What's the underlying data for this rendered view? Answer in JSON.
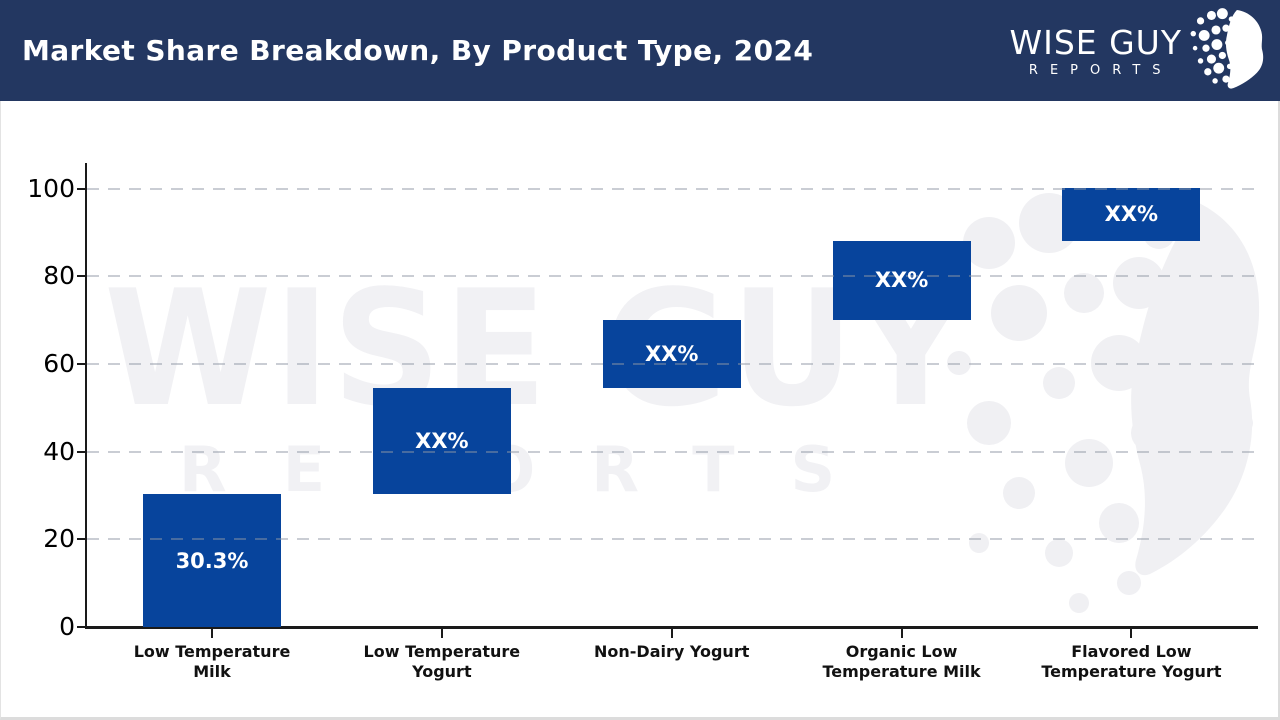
{
  "header": {
    "title": "Market Share Breakdown, By Product Type, 2024",
    "bg_color": "#233761",
    "logo": {
      "wordmark": "WISE GUY",
      "subtext": "REPORTS"
    }
  },
  "watermark": {
    "line1": "WISE GUY",
    "line2": "REPORTS"
  },
  "chart_data": {
    "type": "bar",
    "subtype": "floating-waterfall",
    "title": "Market Share Breakdown, By Product Type, 2024",
    "xlabel": "",
    "ylabel": "",
    "ylim": [
      0,
      105
    ],
    "yticks": [
      0,
      20,
      40,
      60,
      80,
      100
    ],
    "grid": "horizontal-dashed",
    "legend": "none",
    "bar_color": "#07449c",
    "label_color": "#ffffff",
    "categories": [
      "Low Temperature Milk",
      "Low Temperature Yogurt",
      "Non-Dairy Yogurt",
      "Organic Low Temperature Milk",
      "Flavored Low Temperature Yogurt"
    ],
    "bars": [
      {
        "category_lines": [
          "Low Temperature",
          "Milk"
        ],
        "start": 0,
        "end": 30.3,
        "label": "30.3%"
      },
      {
        "category_lines": [
          "Low Temperature",
          "Yogurt"
        ],
        "start": 30.3,
        "end": 54.6,
        "label": "XX%"
      },
      {
        "category_lines": [
          "Non-Dairy Yogurt"
        ],
        "start": 54.6,
        "end": 70.0,
        "label": "XX%"
      },
      {
        "category_lines": [
          "Organic Low",
          "Temperature Milk"
        ],
        "start": 70.1,
        "end": 88.1,
        "label": "XX%"
      },
      {
        "category_lines": [
          "Flavored Low",
          "Temperature Yogurt"
        ],
        "start": 88.1,
        "end": 100.2,
        "label": "XX%"
      }
    ]
  }
}
